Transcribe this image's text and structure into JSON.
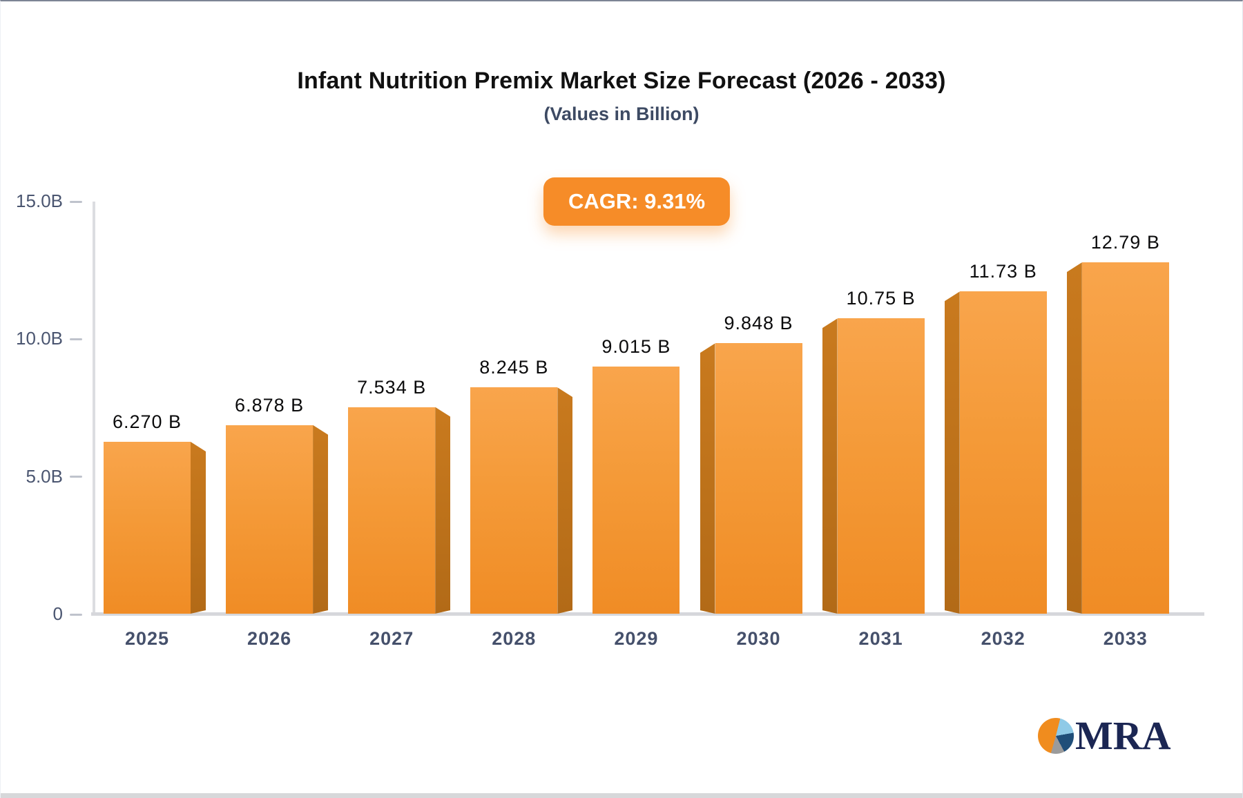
{
  "header": {
    "title": "Infant Nutrition Premix Market Size Forecast (2026 - 2033)",
    "subtitle": "(Values in Billion)",
    "badge_label": "CAGR: 9.31%"
  },
  "chart_data": {
    "type": "bar",
    "title": "Infant Nutrition Premix Market Size Forecast (2026 - 2033)",
    "subtitle": "(Values in Billion)",
    "annotation": "CAGR: 9.31%",
    "categories": [
      "2025",
      "2026",
      "2027",
      "2028",
      "2029",
      "2030",
      "2031",
      "2032",
      "2033"
    ],
    "values": [
      6.27,
      6.878,
      7.534,
      8.245,
      9.015,
      9.848,
      10.75,
      11.73,
      12.79
    ],
    "value_labels": [
      "6.270 B",
      "6.878 B",
      "7.534 B",
      "8.245 B",
      "9.015 B",
      "9.848 B",
      "10.75 B",
      "11.73 B",
      "12.79 B"
    ],
    "unit": "Billion",
    "ylim": [
      0,
      15
    ],
    "yticks": [
      {
        "value": 15,
        "label": "15.0B"
      },
      {
        "value": 10,
        "label": "10.0B"
      },
      {
        "value": 5,
        "label": "5.0B"
      },
      {
        "value": 0,
        "label": "0"
      }
    ],
    "grid": false,
    "legend": false,
    "bar_style": "3d-perspective-center-vanishing",
    "colors": {
      "bar_face_top": "#F9A54C",
      "bar_face_bottom": "#F08C25",
      "bar_side": "#C1731C",
      "badge": "#F68C28",
      "axis": "#DCDDE1",
      "tick": "#BFC3CC",
      "axis_label": "#4A5570",
      "value_label": "#0B0B0C",
      "title": "#111111",
      "subtitle": "#3D4A63"
    }
  },
  "logo": {
    "text": "MRA",
    "pie_icon": "pie-chart-icon",
    "colors": {
      "orange": "#F08C1E",
      "light_blue": "#8FCAE7",
      "navy": "#1F4E79",
      "gray": "#9B9B9B",
      "text_navy": "#1B2653"
    }
  }
}
